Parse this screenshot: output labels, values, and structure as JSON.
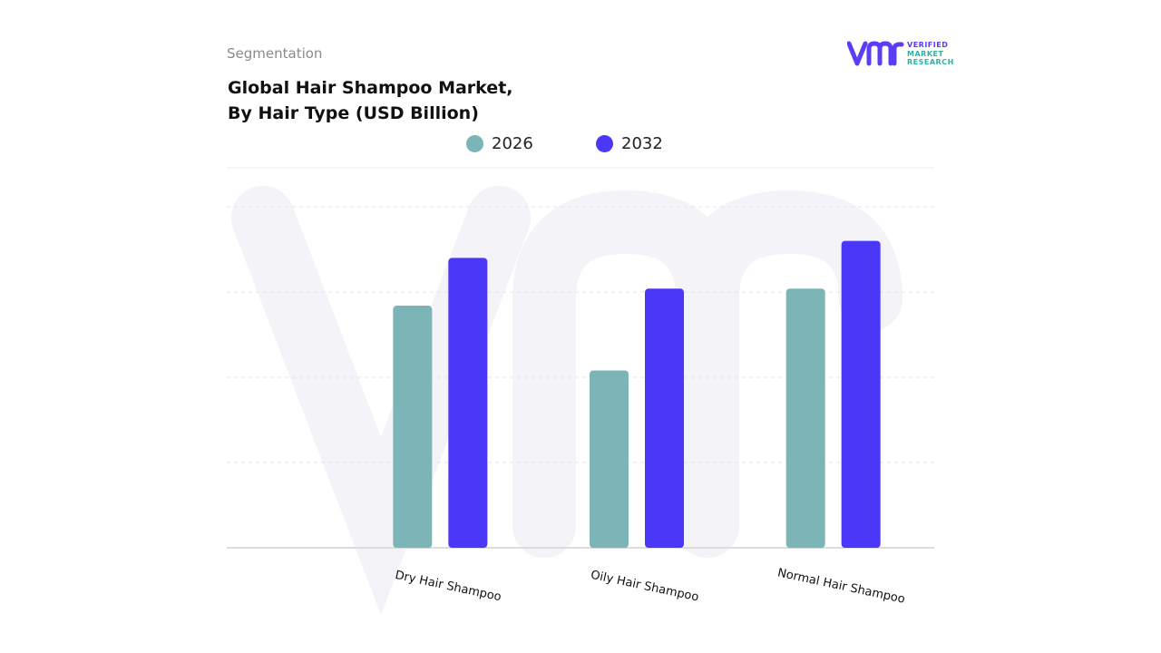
{
  "header": {
    "eyebrow": "Segmentation",
    "title_line1": "Global Hair Shampoo Market,",
    "title_line2": "By Hair Type (USD Billion)"
  },
  "logo": {
    "mark": "vmr-logo-icon",
    "line1": "VERIFIED",
    "line2": "MARKET",
    "line3": "RESEARCH",
    "color": "#5b3df5",
    "text_color": "#2bb3a3"
  },
  "chart_data": {
    "type": "bar",
    "categories": [
      "Dry Hair Shampoo",
      "Oily Hair Shampoo",
      "Normal Hair Shampoo"
    ],
    "series": [
      {
        "name": "2026",
        "values": [
          7.1,
          5.2,
          7.6
        ],
        "color": "#7bb5b8"
      },
      {
        "name": "2032",
        "values": [
          8.5,
          7.6,
          9.0
        ],
        "color": "#4a37f8"
      }
    ],
    "ylim": [
      0,
      10
    ],
    "yticks": [
      0,
      2.5,
      5,
      7.5,
      10
    ],
    "grid": true,
    "legend": "top-center",
    "title": "Global Hair Shampoo Market, By Hair Type (USD Billion)",
    "xlabel": "",
    "ylabel": ""
  }
}
